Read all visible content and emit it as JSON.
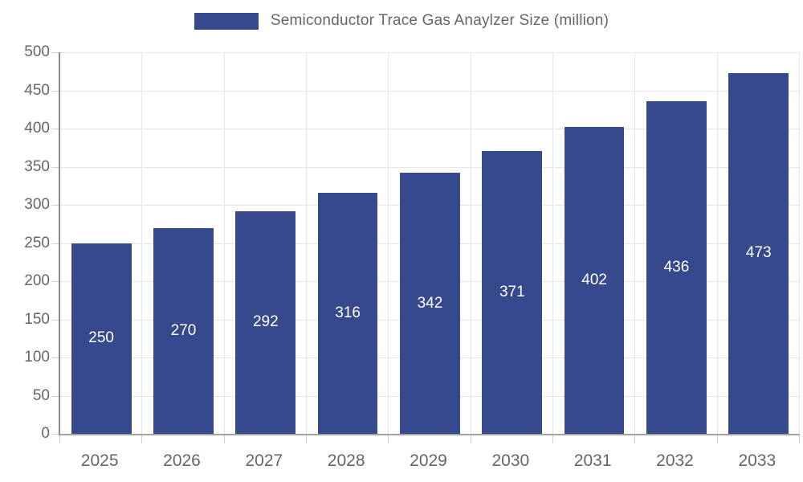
{
  "chart_data": {
    "type": "bar",
    "title": "Semiconductor Trace Gas Anaylzer Size (million)",
    "categories": [
      "2025",
      "2026",
      "2027",
      "2028",
      "2029",
      "2030",
      "2031",
      "2032",
      "2033"
    ],
    "values": [
      250,
      270,
      292,
      316,
      342,
      371,
      402,
      436,
      473
    ],
    "xlabel": "",
    "ylabel": "",
    "ylim": [
      0,
      500
    ],
    "ytick_step": 50,
    "grid": "on",
    "legend_position": "top"
  },
  "colors": {
    "bar_fill": "#36498c",
    "value_label": "#ffffff",
    "grid_line": "#e6e6e6",
    "axis_spine": "#8c8c8c",
    "tick_mark": "#cccccc",
    "axis_text": "#666666",
    "background": "#ffffff"
  },
  "legend": {
    "swatch": "legend-swatch",
    "label": "Semiconductor Trace Gas Anaylzer Size (million)"
  }
}
